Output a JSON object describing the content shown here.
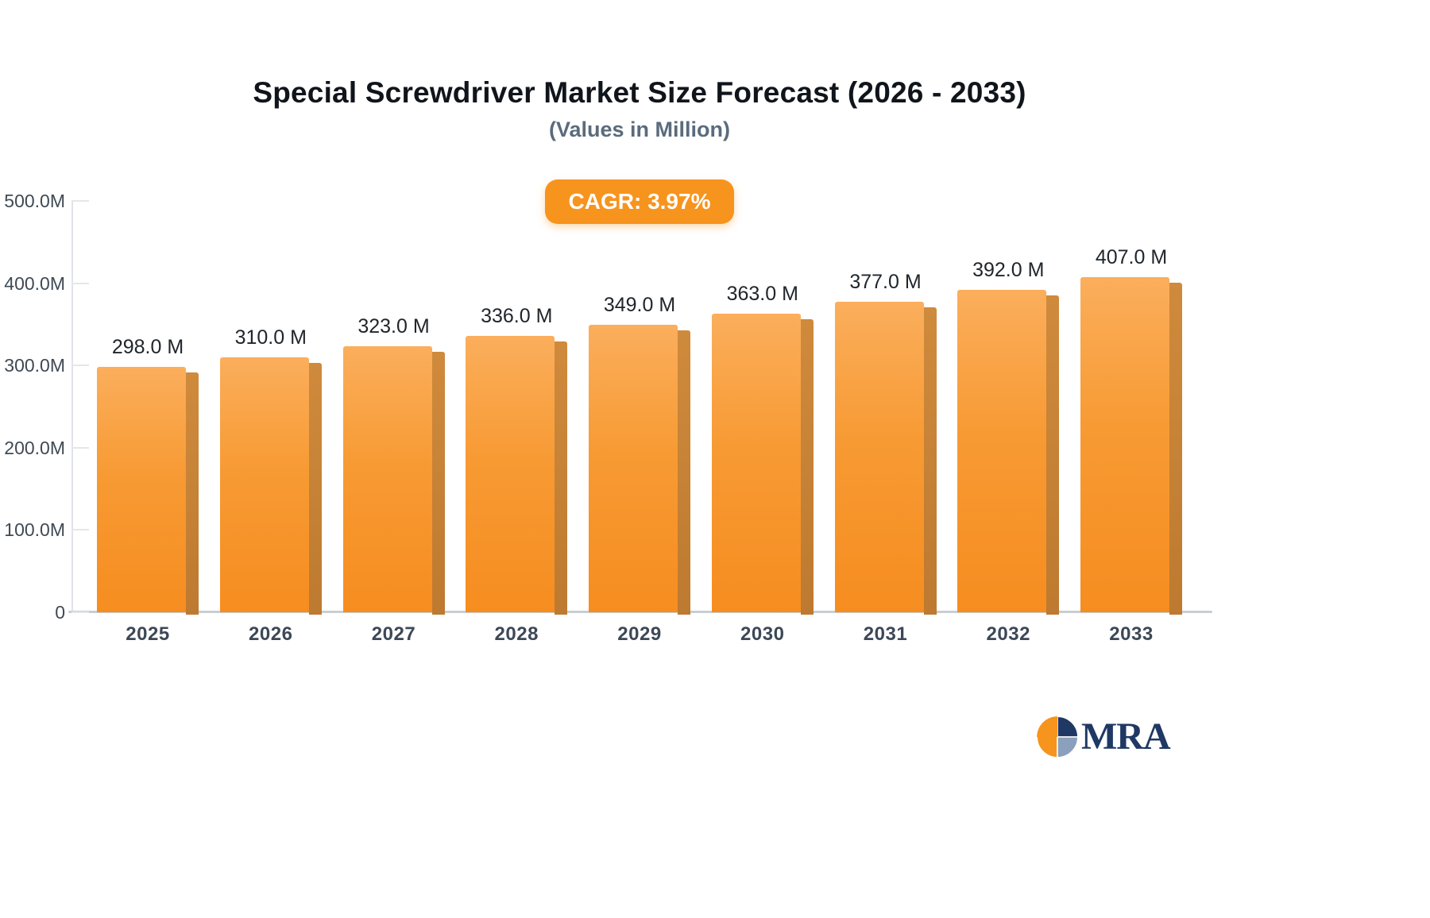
{
  "chart_data": {
    "type": "bar",
    "title": "Special Screwdriver Market Size Forecast (2026 - 2033)",
    "subtitle": "(Values in Million)",
    "badge": "CAGR: 3.97%",
    "categories": [
      "2025",
      "2026",
      "2027",
      "2028",
      "2029",
      "2030",
      "2031",
      "2032",
      "2033"
    ],
    "values": [
      298,
      310,
      323,
      336,
      349,
      363,
      377,
      392,
      407
    ],
    "value_labels": [
      "298.0 M",
      "310.0 M",
      "323.0 M",
      "336.0 M",
      "349.0 M",
      "363.0 M",
      "377.0 M",
      "392.0 M",
      "407.0 M"
    ],
    "unit": "Million",
    "ylim": [
      0,
      500
    ],
    "y_ticks": [
      {
        "label": "500.0M",
        "value": 500
      },
      {
        "label": "400.0M",
        "value": 400
      },
      {
        "label": "300.0M",
        "value": 300
      },
      {
        "label": "200.0M",
        "value": 200
      },
      {
        "label": "100.0M",
        "value": 100
      },
      {
        "label": "0",
        "value": 0
      }
    ],
    "grid": "ticks-only",
    "legend": "none",
    "colors": {
      "bar_top": "#fbae5c",
      "bar_bottom": "#f68d20",
      "bar_side": "#bd7a30",
      "badge_bg": "#f7941e",
      "badge_text": "#ffffff",
      "title_text": "#10151c",
      "subtitle_text": "#5a6b7c",
      "axis_line": "#c9ced3"
    }
  },
  "logo": {
    "text": "MRA",
    "icon": "pie-chart-icon",
    "icon_colors": {
      "orange": "#f7941d",
      "navy": "#1f3864",
      "slate": "#8aa0bd"
    }
  }
}
